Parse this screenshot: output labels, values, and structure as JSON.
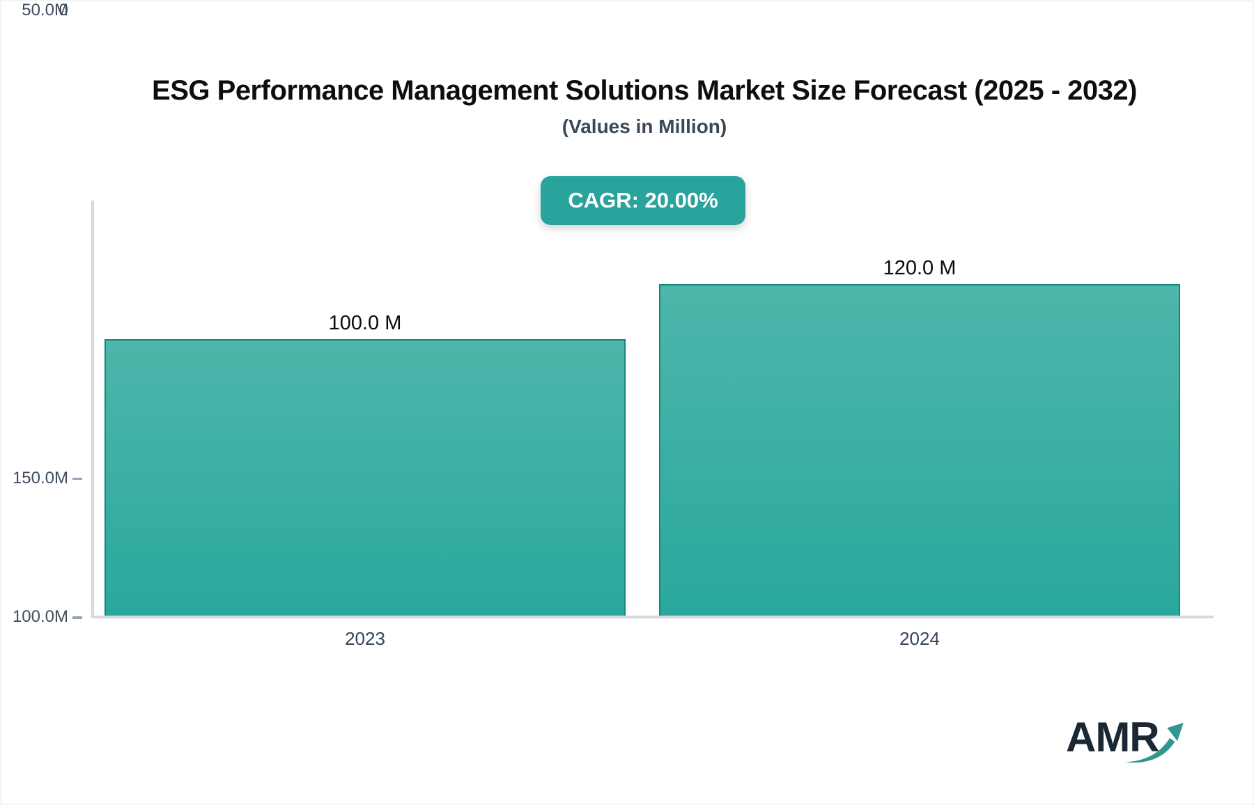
{
  "header": {
    "title": "ESG Performance Management Solutions Market Size Forecast (2025 - 2032)",
    "subtitle": "(Values in Million)",
    "cagr_badge": "CAGR: 20.00%"
  },
  "chart_data": {
    "type": "bar",
    "categories": [
      "2023",
      "2024"
    ],
    "values": [
      100.0,
      120.0
    ],
    "value_labels": [
      "100.0 M",
      "120.0 M"
    ],
    "title": "ESG Performance Management Solutions Market Size Forecast (2025 - 2032)",
    "subtitle": "(Values in Million)",
    "cagr_percent": "20.00%",
    "xlabel": "",
    "ylabel": "",
    "ylim": [
      0,
      150
    ],
    "ytick_labels": [
      "150.0M",
      "100.0M",
      "50.0M",
      "0"
    ],
    "ytick_values": [
      150,
      100,
      50,
      0
    ],
    "grid": false,
    "legend": "none",
    "bar_gradient_top": "#4eb6ab",
    "bar_gradient_bottom": "#2aa89c",
    "bar_border": "#12897f"
  },
  "branding": {
    "logo_text": "AMR"
  },
  "colors": {
    "accent_teal": "#2aa39c",
    "badge_text": "#ffffff",
    "axis_line": "#d5d8dd",
    "tick_mark": "#9aa2ab",
    "title_text": "#0e0e0e",
    "subtitle_text": "#3b4856",
    "axis_label_text": "#3e4c5e",
    "value_label_text": "#0c0c0c",
    "logo_text_color": "#1b2733",
    "logo_arrow_color": "#2f9790"
  }
}
